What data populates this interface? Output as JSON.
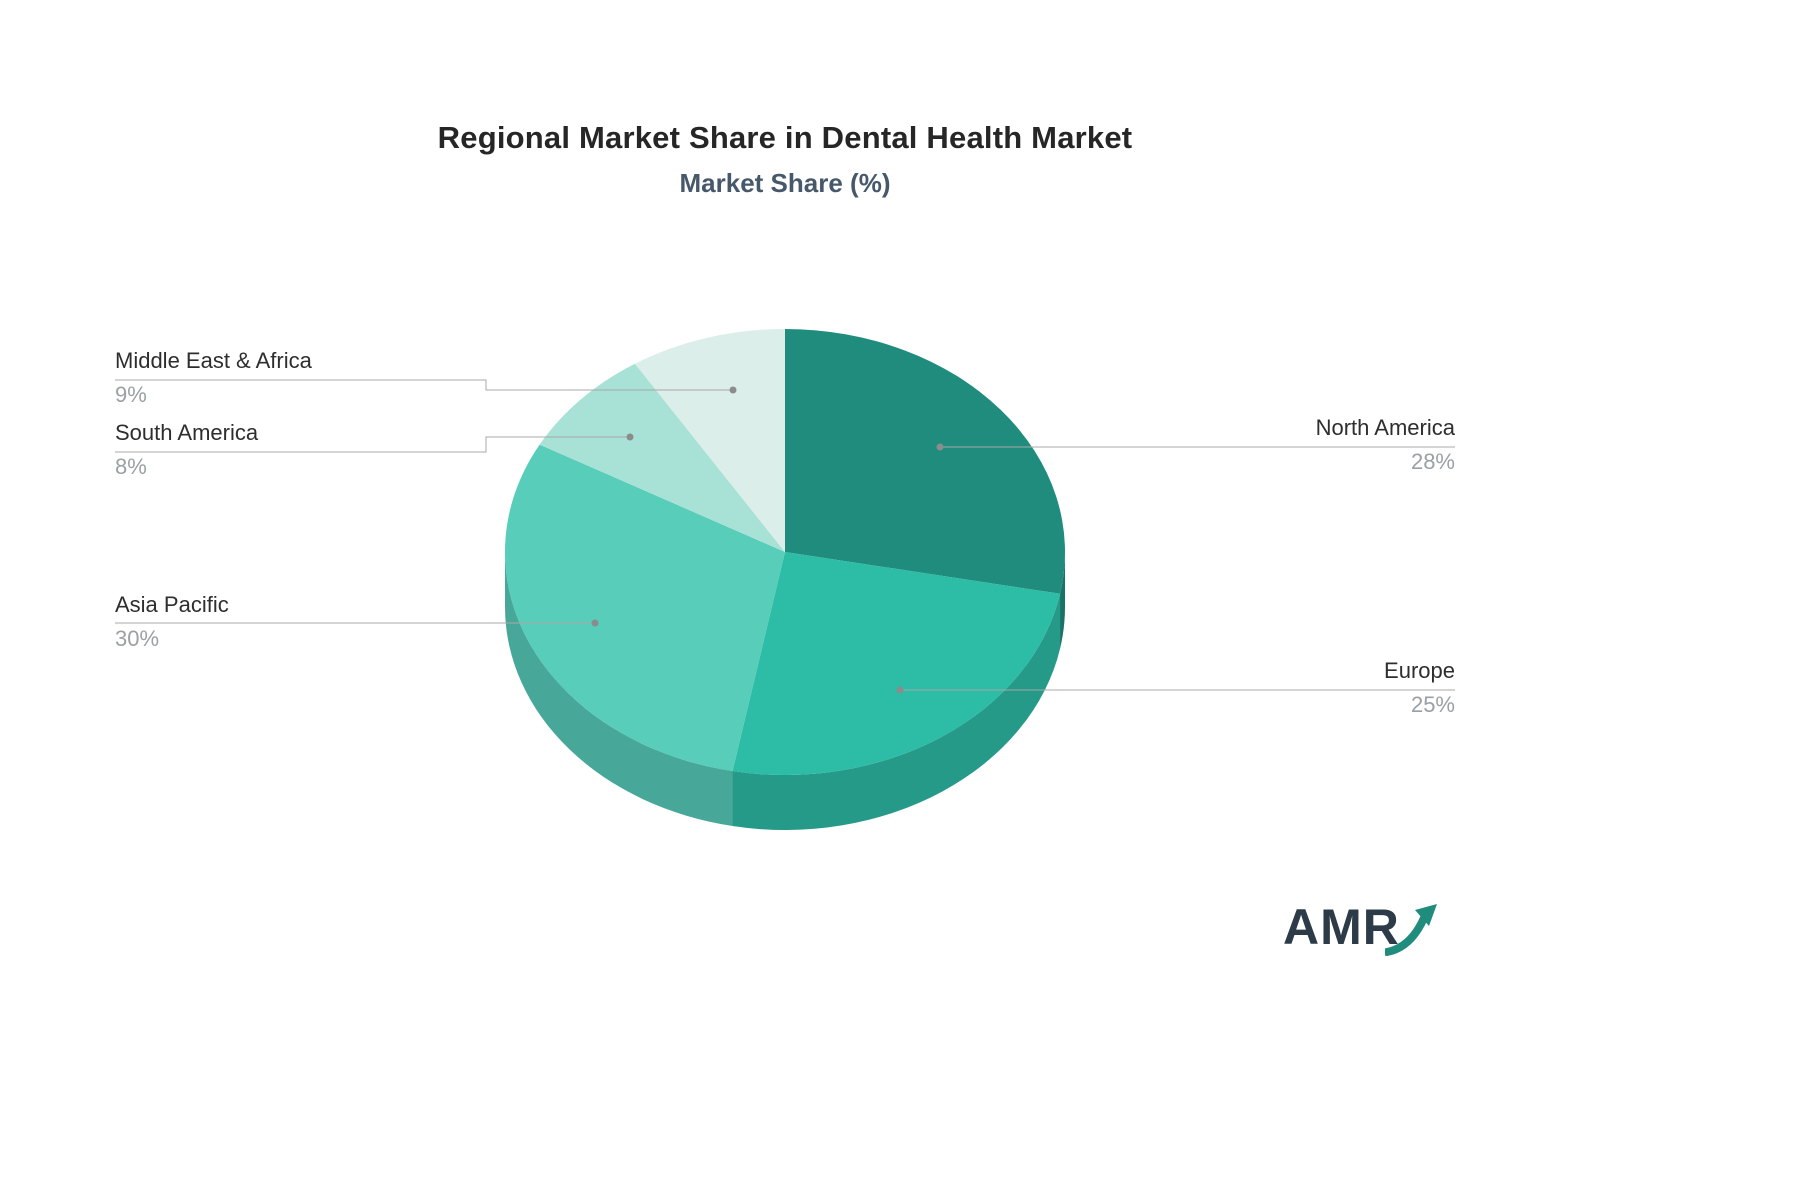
{
  "chart_data": {
    "type": "pie",
    "title": "Regional Market Share in Dental Health Market",
    "subtitle": "Market Share (%)",
    "categories": [
      "North America",
      "Europe",
      "Asia Pacific",
      "South America",
      "Middle East & Africa"
    ],
    "values": [
      28,
      25,
      30,
      8,
      9
    ],
    "value_labels": [
      "28%",
      "25%",
      "30%",
      "8%",
      "9%"
    ],
    "colors": [
      "#1f8c7d",
      "#2dbca6",
      "#57cdba",
      "#a8e1d6",
      "#dceeea"
    ],
    "legend_position": "none",
    "label_style": "leader-lines",
    "effect": "3d"
  },
  "logo": {
    "text": "AMR",
    "accent_color": "#1f8c7d"
  }
}
